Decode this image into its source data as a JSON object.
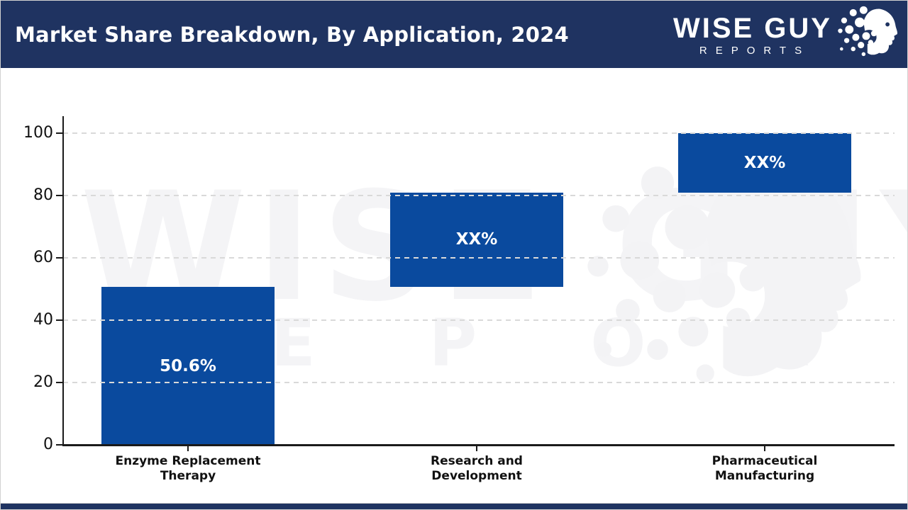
{
  "header": {
    "title": "Market Share Breakdown, By Application, 2024",
    "background_color": "#1f3361",
    "logo": {
      "wordmark": "WISE GUY",
      "subtext": "REPORTS"
    }
  },
  "watermark": {
    "line1": "WISE GUY",
    "line2": "R E P O R T S"
  },
  "chart_data": {
    "type": "bar",
    "variant": "floating-waterfall",
    "title": "Market Share Breakdown, By Application, 2024",
    "categories": [
      [
        "Enzyme Replacement",
        "Therapy"
      ],
      [
        "Research and",
        "Development"
      ],
      [
        "Pharmaceutical",
        "Manufacturing"
      ]
    ],
    "segments": [
      {
        "category": "Enzyme Replacement Therapy",
        "start": 0,
        "end": 50.6,
        "value": 50.6,
        "label": "50.6%"
      },
      {
        "category": "Research and Development",
        "start": 50.6,
        "end": 81,
        "value": 30.4,
        "label": "XX%"
      },
      {
        "category": "Pharmaceutical Manufacturing",
        "start": 81,
        "end": 100,
        "value": 19,
        "label": "XX%"
      }
    ],
    "xlabel": "",
    "ylabel": "",
    "yticks": [
      0,
      20,
      40,
      60,
      80,
      100
    ],
    "ylim": [
      0,
      105
    ],
    "grid": {
      "axis": "y",
      "style": "dashed",
      "color": "#d9d9d9",
      "on_top_of_bars": true
    },
    "bar_color": "#0a4a9e",
    "bar_label_color": "#ffffff",
    "axis_color": "#1a1a1a",
    "legend": null
  }
}
